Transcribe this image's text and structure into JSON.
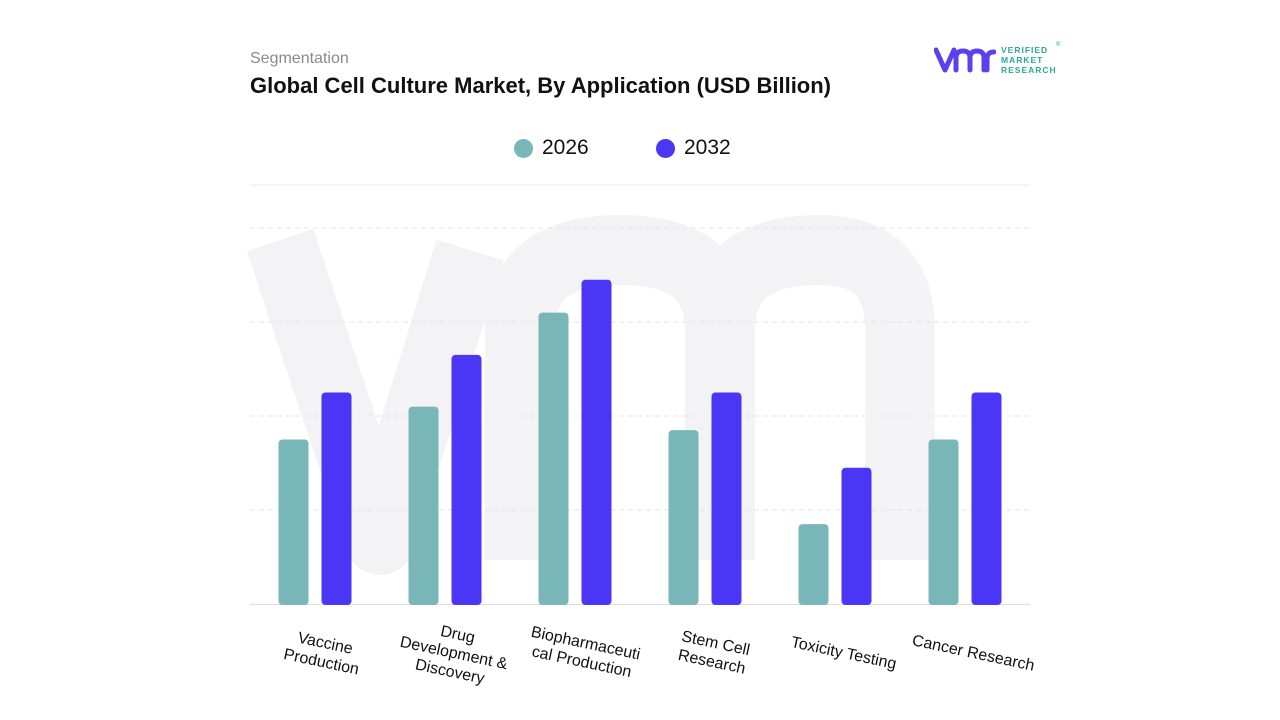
{
  "header": {
    "eyebrow": "Segmentation",
    "title": "Global Cell Culture Market, By Application (USD Billion)"
  },
  "logo": {
    "line1": "VERIFIED",
    "line2": "MARKET",
    "line3": "RESEARCH",
    "reg": "®",
    "mark_color": "#5b3ff0",
    "text_color": "#2aa89a"
  },
  "legend": [
    {
      "label": "2026",
      "color": "#78b6b7"
    },
    {
      "label": "2032",
      "color": "#4b36f5"
    }
  ],
  "chart_data": {
    "type": "bar",
    "categories": [
      [
        "Vaccine",
        "Production"
      ],
      [
        "Drug",
        "Development &",
        "Discovery"
      ],
      [
        "Biopharmaceuti",
        "cal Production"
      ],
      [
        "Stem Cell",
        "Research"
      ],
      [
        "Toxicity  Testing"
      ],
      [
        "Cancer Research"
      ]
    ],
    "series": [
      {
        "name": "2026",
        "color": "#78b6b7",
        "values": [
          1.75,
          2.1,
          3.1,
          1.85,
          0.85,
          1.75
        ]
      },
      {
        "name": "2032",
        "color": "#4b36f5",
        "values": [
          2.25,
          2.65,
          3.45,
          2.25,
          1.45,
          2.25
        ]
      }
    ],
    "ylim": [
      0,
      4
    ],
    "grid": true,
    "legend_position": "top-center",
    "xlabel": "",
    "ylabel": ""
  }
}
